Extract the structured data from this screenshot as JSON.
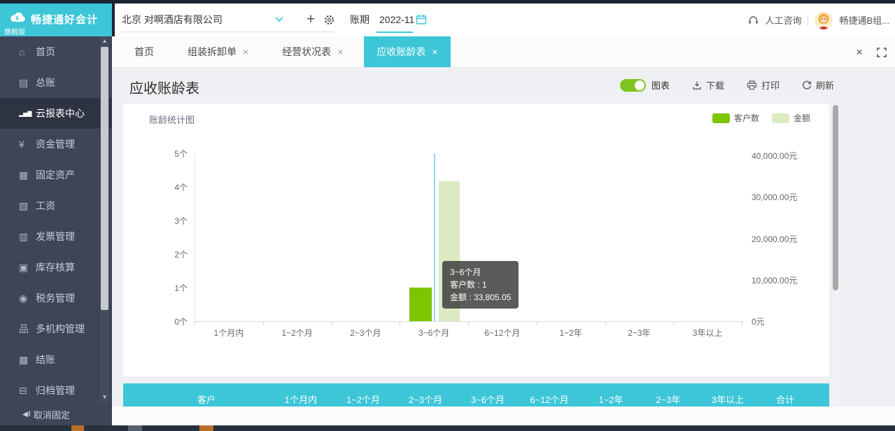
{
  "brand": {
    "name": "畅捷通好会计",
    "edition": "旗舰版"
  },
  "topbar": {
    "company": "北京 对啊酒店有限公司",
    "plus": "+",
    "period_label": "账期",
    "period_value": "2022-11",
    "consult_label": "人工咨询",
    "user_name": "畅捷通B组..."
  },
  "sidebar": {
    "items": [
      {
        "label": "首页",
        "icon": "home-icon",
        "glyph": "⌂",
        "active": false
      },
      {
        "label": "总账",
        "icon": "general-ledger-icon",
        "glyph": "▤",
        "active": false
      },
      {
        "label": "云报表中心",
        "icon": "cloud-report-icon",
        "glyph": "▂▅▇",
        "active": true
      },
      {
        "label": "资金管理",
        "icon": "funds-icon",
        "glyph": "¥",
        "active": false
      },
      {
        "label": "固定资产",
        "icon": "fixed-assets-icon",
        "glyph": "▦",
        "active": false
      },
      {
        "label": "工资",
        "icon": "payroll-icon",
        "glyph": "▧",
        "active": false
      },
      {
        "label": "发票管理",
        "icon": "invoice-icon",
        "glyph": "▥",
        "active": false
      },
      {
        "label": "库存核算",
        "icon": "inventory-icon",
        "glyph": "▣",
        "active": false
      },
      {
        "label": "税务管理",
        "icon": "tax-icon",
        "glyph": "◉",
        "active": false
      },
      {
        "label": "多机构管理",
        "icon": "multi-org-icon",
        "glyph": "品",
        "active": false
      },
      {
        "label": "结账",
        "icon": "closing-icon",
        "glyph": "▩",
        "active": false
      },
      {
        "label": "归档管理",
        "icon": "archive-icon",
        "glyph": "⊟",
        "active": false
      }
    ],
    "unpin_glyph": "◀‖",
    "unpin_label": "取消固定"
  },
  "tabs": {
    "items": [
      {
        "label": "首页",
        "closable": false,
        "active": false
      },
      {
        "label": "组装拆卸单",
        "closable": true,
        "active": false
      },
      {
        "label": "经营状况表",
        "closable": true,
        "active": false
      },
      {
        "label": "应收账龄表",
        "closable": true,
        "active": true
      }
    ]
  },
  "page": {
    "title": "应收账龄表",
    "chart_toggle_label": "图表",
    "download_label": "下载",
    "print_label": "打印",
    "refresh_label": "刷新"
  },
  "chart_data": {
    "type": "bar",
    "title": "账龄统计图",
    "categories": [
      "1个月内",
      "1~2个月",
      "2~3个月",
      "3~6个月",
      "6~12个月",
      "1~2年",
      "2~3年",
      "3年以上"
    ],
    "series": [
      {
        "name": "客户数",
        "yaxis": "left",
        "color": "#7cc500",
        "values": [
          0,
          0,
          0,
          1,
          0,
          0,
          0,
          0
        ]
      },
      {
        "name": "金额",
        "yaxis": "right",
        "color": "#dcebc2",
        "values": [
          0,
          0,
          0,
          33805.05,
          0,
          0,
          0,
          0
        ]
      }
    ],
    "left_axis": {
      "ticks": [
        "0个",
        "1个",
        "2个",
        "3个",
        "4个",
        "5个"
      ],
      "min": 0,
      "max": 5
    },
    "right_axis": {
      "ticks": [
        "0元",
        "10,000.00元",
        "20,000.00元",
        "30,000.00元",
        "40,000.00元"
      ],
      "min": 0,
      "max": 40000
    },
    "legend": [
      "客户数",
      "金额"
    ],
    "legend_position": "top-right",
    "grid": false,
    "tooltip": {
      "category": "3~6个月",
      "customer_count": 1,
      "amount": 33805.05,
      "lines": [
        "3~6个月",
        "客户数 : 1",
        "金额 : 33,805.05"
      ]
    }
  },
  "table": {
    "columns": [
      "客户",
      "1个月内",
      "1~2个月",
      "2~3个月",
      "3~6个月",
      "6~12个月",
      "1~2年",
      "2~3年",
      "3年以上",
      "合计"
    ]
  },
  "colors": {
    "accent": "#3cc6d8",
    "sidebar_bg": "#3e4557",
    "sidebar_active_bg": "#2e3342",
    "toggle_on": "#7fc51f",
    "count_series": "#7cc500",
    "amount_series": "#dcebc2",
    "pointer_line": "#8fd8ef",
    "tooltip_bg": "#383838",
    "taskbar": "#27313d",
    "taskbar_orange": "#b96f2b",
    "taskbar_slate": "#56626e"
  }
}
